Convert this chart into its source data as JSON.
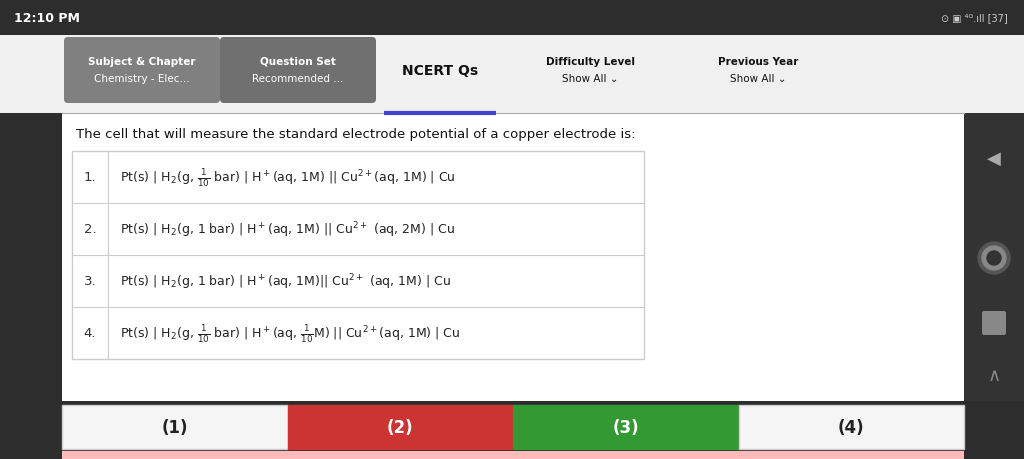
{
  "bg_color": "#2d2d2d",
  "header_bg": "#2d2d2d",
  "nav_bg": "#f0f0f0",
  "content_bg": "#ffffff",
  "time": "12:10 PM",
  "nav_buttons": [
    {
      "label": "Subject & Chapter\nChemistry - Elec...",
      "bg": "#808080",
      "text": "#ffffff",
      "bold_top": true
    },
    {
      "label": "Question Set\nRecommended ...",
      "bg": "#707070",
      "text": "#ffffff",
      "bold_top": true
    },
    {
      "label": "NCERT Qs",
      "bg": "#f0f0f0",
      "text": "#111111",
      "bold_top": false
    },
    {
      "label": "Difficulty Level\nShow All ⌄",
      "bg": "#f0f0f0",
      "text": "#111111",
      "bold_top": true
    },
    {
      "label": "Previous Year\nShow All ⌄",
      "bg": "#f0f0f0",
      "text": "#111111",
      "bold_top": true
    }
  ],
  "ncert_underline_color": "#4444cc",
  "question_text": "The cell that will measure the standard electrode potential of a copper electrode is:",
  "sidebar_bg": "#333333",
  "answer_buttons": [
    {
      "label": "(1)",
      "bg": "#f5f5f5",
      "text": "#222222",
      "border": "#cccccc"
    },
    {
      "label": "(2)",
      "bg": "#cc3333",
      "text": "#ffffff",
      "border": "#cc3333"
    },
    {
      "label": "(3)",
      "bg": "#339933",
      "text": "#ffffff",
      "border": "#339933"
    },
    {
      "label": "(4)",
      "bg": "#f5f5f5",
      "text": "#222222",
      "border": "#cccccc"
    }
  ],
  "bottom_strip_color": "#ffbbbb",
  "opt_box_border": "#cccccc",
  "opt_text_color": "#222222",
  "nav_area_bg": "#f0f0f0"
}
